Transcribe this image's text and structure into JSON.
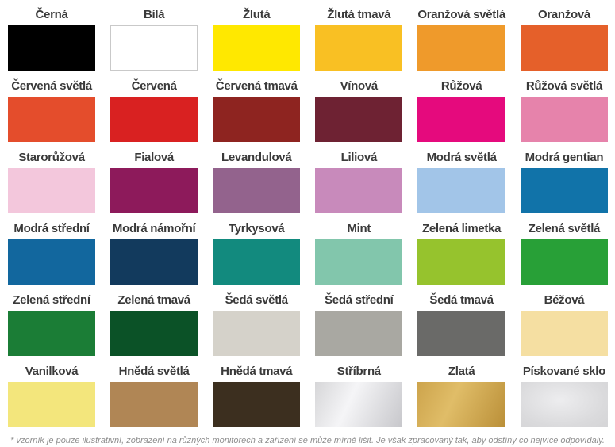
{
  "chart_data": {
    "type": "table",
    "title": "",
    "columns": 6,
    "rows": 6,
    "legend_position": "none",
    "swatches": [
      {
        "label": "Černá",
        "fill": "#000000"
      },
      {
        "label": "Bílá",
        "fill": "#ffffff",
        "border": "#c9c9c9"
      },
      {
        "label": "Žlutá",
        "fill": "#ffe800"
      },
      {
        "label": "Žlutá tmavá",
        "fill": "#f9c023"
      },
      {
        "label": "Oranžová světlá",
        "fill": "#ef9a2b"
      },
      {
        "label": "Oranžová",
        "fill": "#e5602a"
      },
      {
        "label": "Červená světlá",
        "fill": "#e44d2c"
      },
      {
        "label": "Červená",
        "fill": "#d92121"
      },
      {
        "label": "Červená tmavá",
        "fill": "#8e2420"
      },
      {
        "label": "Vínová",
        "fill": "#6e2233"
      },
      {
        "label": "Růžová",
        "fill": "#e50a7d"
      },
      {
        "label": "Růžová světlá",
        "fill": "#e683ab"
      },
      {
        "label": "Starorůžová",
        "fill": "#f3c7dc"
      },
      {
        "label": "Fialová",
        "fill": "#8d1a5b"
      },
      {
        "label": "Levandulová",
        "fill": "#93638d"
      },
      {
        "label": "Liliová",
        "fill": "#c88abb"
      },
      {
        "label": "Modrá světlá",
        "fill": "#a2c5e8"
      },
      {
        "label": "Modrá gentian",
        "fill": "#1173a9"
      },
      {
        "label": "Modrá střední",
        "fill": "#12679e"
      },
      {
        "label": "Modrá námořní",
        "fill": "#123a5d"
      },
      {
        "label": "Tyrkysová",
        "fill": "#128a7e"
      },
      {
        "label": "Mint",
        "fill": "#82c6ac"
      },
      {
        "label": "Zelená limetka",
        "fill": "#96c32d"
      },
      {
        "label": "Zelená světlá",
        "fill": "#28a037"
      },
      {
        "label": "Zelená střední",
        "fill": "#1b7d36"
      },
      {
        "label": "Zelená tmavá",
        "fill": "#0b5227"
      },
      {
        "label": "Šedá světlá",
        "fill": "#d5d2ca"
      },
      {
        "label": "Šedá střední",
        "fill": "#a9a8a2"
      },
      {
        "label": "Šedá tmavá",
        "fill": "#6a6a68"
      },
      {
        "label": "Béžová",
        "fill": "#f5dfa2"
      },
      {
        "label": "Vanilková",
        "fill": "#f3e67c"
      },
      {
        "label": "Hnědá světlá",
        "fill": "#b08655"
      },
      {
        "label": "Hnědá tmavá",
        "fill": "#3c2f1f"
      },
      {
        "label": "Stříbrná",
        "fill": "linear-gradient(115deg, #d6d6d8 0%, #f5f5f7 40%, #c7c7cb 100%)"
      },
      {
        "label": "Zlatá",
        "fill": "linear-gradient(115deg, #cda44c 0%, #e0bd68 40%, #ba8f38 100%)"
      },
      {
        "label": "Pískované sklo",
        "fill": "radial-gradient(ellipse 80% 90% at 45% 40%, #ededef 0%, #dadadc 65%, #d4d4d6 100%)"
      }
    ]
  },
  "footnote": "* vzorník je pouze ilustrativní, zobrazení na různých monitorech a zařízení se může mírně lišit. Je však zpracovaný tak, aby odstíny co nejvíce odpovídaly."
}
